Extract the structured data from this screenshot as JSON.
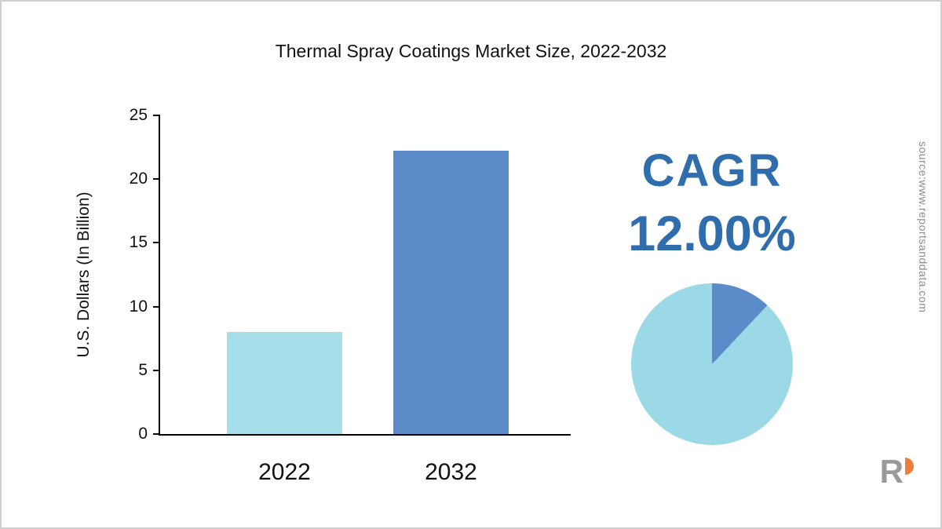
{
  "title": "Thermal Spray Coatings Market Size, 2022-2032",
  "chart_data": [
    {
      "type": "bar",
      "title": "Thermal Spray Coatings Market Size, 2022-2032",
      "categories": [
        "2022",
        "2032"
      ],
      "values": [
        8,
        22.2
      ],
      "xlabel": "",
      "ylabel": "U.S. Dollars (In Billion)",
      "ylim": [
        0,
        25
      ],
      "yticks": [
        0,
        5,
        10,
        15,
        20,
        25
      ],
      "bar_colors": [
        "#a5dde8",
        "#5b8cc9"
      ],
      "grid": false,
      "legend": "none"
    },
    {
      "type": "pie",
      "labels": [
        "CAGR highlighted share",
        "remainder"
      ],
      "values": [
        12,
        88
      ],
      "colors": [
        "#5b8cc9",
        "#9cd9e7"
      ],
      "start_angle": "12 o'clock",
      "direction": "clockwise"
    }
  ],
  "cagr": {
    "label": "CAGR",
    "value": "12.00%",
    "color": "#2f6dad"
  },
  "source": {
    "text": "source:www.reportsanddata.com"
  },
  "logo": {
    "letter": "R",
    "dot_color": "#ef7d3a"
  }
}
